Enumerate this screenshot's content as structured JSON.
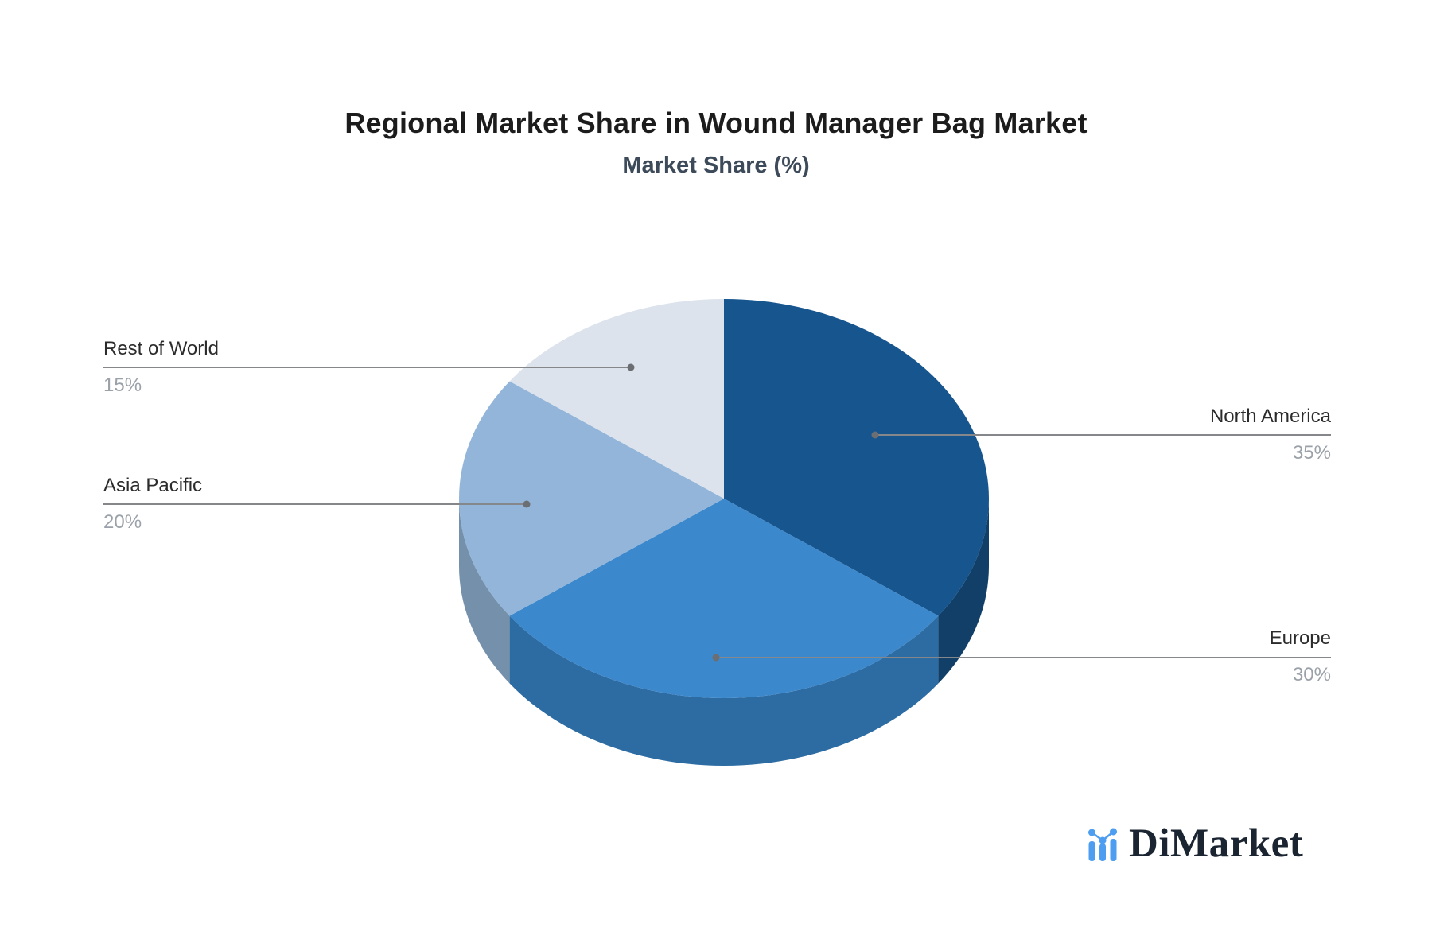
{
  "chart_data": {
    "type": "pie",
    "style": "3d-pie",
    "title": "Regional Market Share in Wound Manager Bag Market",
    "subtitle": "Market Share (%)",
    "unit": "%",
    "labels": [
      "North America",
      "Europe",
      "Asia Pacific",
      "Rest of World"
    ],
    "values": [
      35,
      30,
      20,
      15
    ],
    "display_values": [
      "35%",
      "30%",
      "20%",
      "15%"
    ],
    "colors": [
      "#17558E",
      "#3C88CC",
      "#92B5D9",
      "#DCE3ED"
    ],
    "side_colors": [
      "#123F68",
      "#2D6CA3",
      "#7590AB",
      "#A9B5C6"
    ],
    "start_angle_deg": 90,
    "direction": "clockwise",
    "legend_position": "callout-labels",
    "label_color": "#2B2B2B",
    "value_color": "#9BA1A9",
    "leader_line_color": "#85878A"
  },
  "logo": {
    "text": "DiMarket",
    "icon": "bar-chart-trend-icon",
    "accent_color": "#4D9EF1",
    "text_color": "#1B2532"
  }
}
